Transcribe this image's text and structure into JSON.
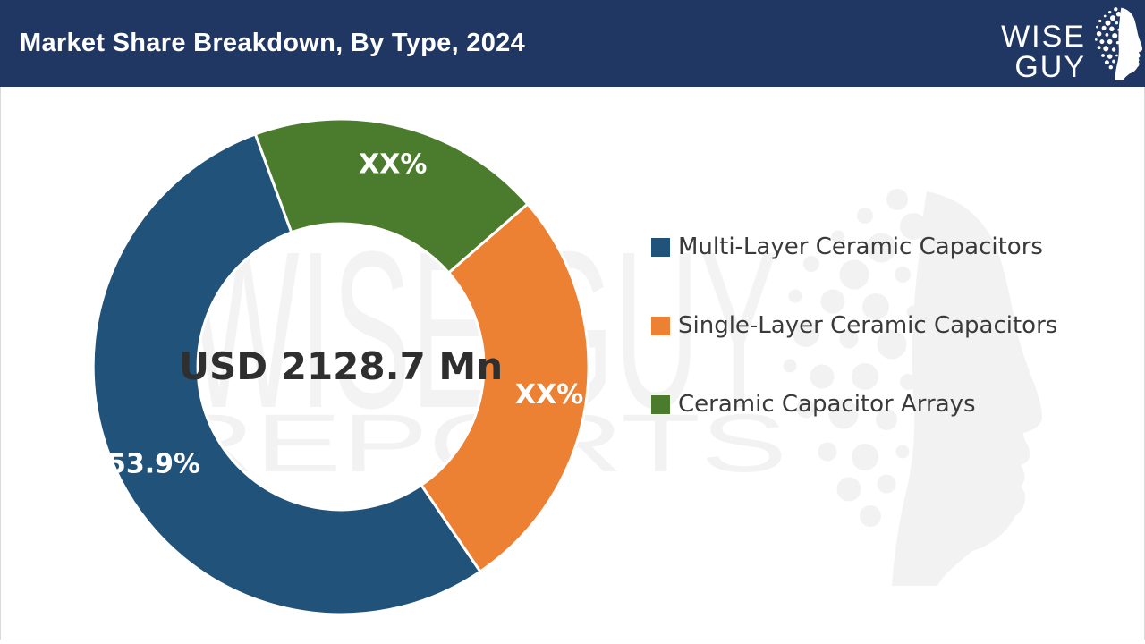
{
  "header": {
    "title": "Market Share Breakdown, By Type, 2024",
    "logo_line1": "WISE GUY",
    "logo_line2": "REPORTS"
  },
  "watermark": {
    "line1": "WISE GUY",
    "line2": "REPORTS"
  },
  "chart_data": {
    "type": "pie",
    "subtype": "donut",
    "title": "Market Share Breakdown, By Type, 2024",
    "center_label": "USD 2128.7 Mn",
    "start_angle_deg": 110.2,
    "direction": "counterclockwise",
    "inner_radius_ratio": 0.578,
    "legend_position": "right",
    "segments": [
      {
        "name": "Multi-Layer Ceramic Capacitors",
        "label": "53.9%",
        "value_pct": 53.9,
        "color": "#20527a"
      },
      {
        "name": "Single-Layer Ceramic Capacitors",
        "label": "XX%",
        "value_pct": 26.9,
        "color": "#ec8033"
      },
      {
        "name": "Ceramic Capacitor Arrays",
        "label": "XX%",
        "value_pct": 19.2,
        "color": "#4b7b2c"
      }
    ]
  },
  "colors": {
    "header_bg": "#203663",
    "wedge_gap": "#ffffff",
    "center_text": "#2f2f2f",
    "legend_text": "#3a3a3a",
    "watermark": "#f2f2f2",
    "frame_border": "#d9d9d9"
  }
}
